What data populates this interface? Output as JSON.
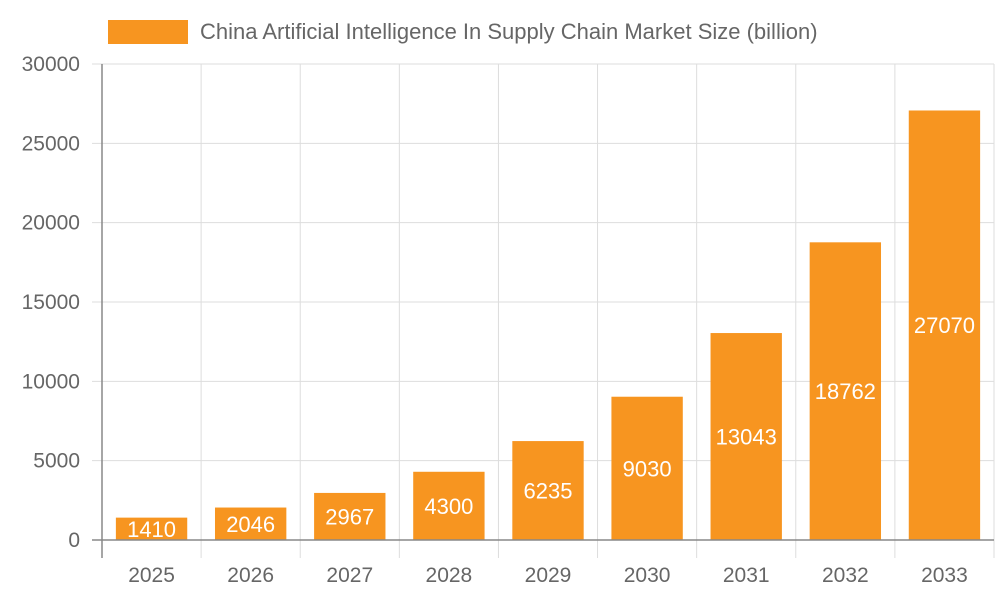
{
  "chart_data": {
    "type": "bar",
    "legend": {
      "label": "China Artificial Intelligence In Supply Chain Market Size (billion)",
      "position": "top"
    },
    "categories": [
      "2025",
      "2026",
      "2027",
      "2028",
      "2029",
      "2030",
      "2031",
      "2032",
      "2033"
    ],
    "series": [
      {
        "name": "China Artificial Intelligence In Supply Chain Market Size (billion)",
        "values": [
          1410,
          2046,
          2967,
          4300,
          6235,
          9030,
          13043,
          18762,
          27070
        ]
      }
    ],
    "ylim": [
      0,
      30000
    ],
    "yticks": [
      "0",
      "5000",
      "10000",
      "15000",
      "20000",
      "25000",
      "30000"
    ],
    "grid": true,
    "data_labels": true,
    "colors": {
      "bar": "#F79520",
      "label": "#ffffff",
      "grid": "#dddddd",
      "axis": "#888888",
      "tick": "#666666"
    }
  }
}
